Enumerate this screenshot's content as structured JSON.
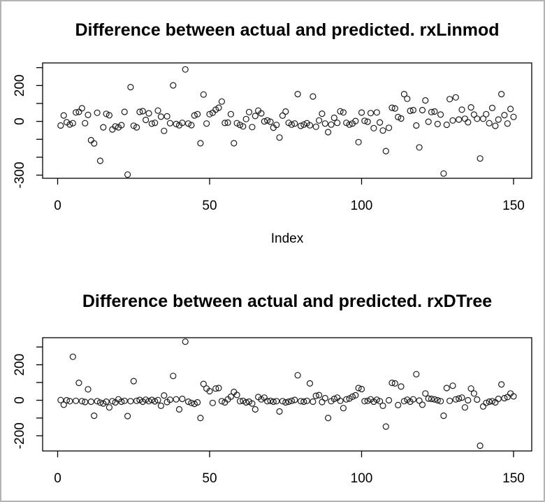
{
  "window": {
    "background": "#ffffff",
    "border_color": "#b3b3b3",
    "frame_color": "#000000",
    "marker": {
      "shape": "open-circle",
      "color": "#1d1d1d"
    }
  },
  "chart_data": [
    {
      "type": "scatter",
      "title": "Difference between actual and predicted. rxLinmod",
      "xlabel": "Index",
      "ylabel": "",
      "xlim": [
        0,
        155
      ],
      "ylim": [
        -320,
        325
      ],
      "grid": "off",
      "x_ticks": [
        0,
        50,
        100,
        150
      ],
      "y_ticks": [
        300,
        200,
        100,
        0,
        -100,
        -200,
        -300
      ],
      "y_tick_labels": [
        200,
        0,
        -300
      ],
      "x_rule": "x = point index 1..150",
      "values": [
        -23,
        33,
        -5,
        -17,
        -10,
        50,
        53,
        73,
        -10,
        36,
        -105,
        -123,
        48,
        -220,
        -33,
        42,
        34,
        -45,
        -28,
        -33,
        -21,
        53,
        -297,
        191,
        -24,
        -33,
        53,
        57,
        8,
        45,
        -13,
        -8,
        60,
        26,
        -53,
        28,
        -10,
        201,
        -15,
        -22,
        -8,
        290,
        -12,
        -21,
        33,
        40,
        -122,
        150,
        -12,
        40,
        48,
        65,
        76,
        111,
        -9,
        -7,
        40,
        -122,
        -10,
        -20,
        -28,
        13,
        52,
        -32,
        30,
        60,
        45,
        0,
        5,
        -2,
        -35,
        -20,
        -90,
        32,
        55,
        -8,
        -18,
        -12,
        152,
        -25,
        -18,
        -10,
        -22,
        139,
        -30,
        5,
        43,
        -12,
        -60,
        -18,
        20,
        -8,
        56,
        50,
        -8,
        -18,
        -12,
        2,
        -116,
        49,
        3,
        -2,
        46,
        -38,
        50,
        -6,
        -51,
        -166,
        -36,
        76,
        72,
        24,
        16,
        152,
        126,
        59,
        63,
        -23,
        -145,
        63,
        117,
        -2,
        52,
        55,
        -15,
        38,
        -291,
        -19,
        124,
        5,
        134,
        10,
        65,
        15,
        -5,
        78,
        38,
        15,
        -207,
        15,
        40,
        -10,
        75,
        -25,
        10,
        152,
        35,
        -12,
        69,
        25
      ]
    },
    {
      "type": "scatter",
      "title": "Difference between actual and predicted. rxDTree",
      "xlabel": "",
      "ylabel": "",
      "xlim": [
        0,
        155
      ],
      "ylim": [
        -275,
        350
      ],
      "grid": "off",
      "x_ticks": [
        0,
        50,
        100,
        150
      ],
      "y_ticks": [
        300,
        200,
        100,
        0,
        -100,
        -200
      ],
      "y_tick_labels": [
        200,
        0,
        -200
      ],
      "x_rule": "x = point index 1..150",
      "values": [
        1,
        -25,
        0,
        -5,
        245,
        -3,
        98,
        -5,
        -10,
        62,
        -8,
        -87,
        -5,
        -13,
        -18,
        -8,
        -40,
        -5,
        -12,
        5,
        -8,
        -3,
        -89,
        -5,
        108,
        -3,
        2,
        -8,
        3,
        -5,
        2,
        -6,
        1,
        -31,
        27,
        -10,
        3,
        137,
        5,
        -51,
        8,
        330,
        -8,
        -15,
        -20,
        -12,
        -100,
        92,
        66,
        51,
        -15,
        66,
        69,
        -5,
        -12,
        5,
        20,
        47,
        30,
        -5,
        -3,
        -12,
        -8,
        -18,
        -51,
        18,
        5,
        15,
        -5,
        -3,
        -8,
        -5,
        -63,
        -5,
        -12,
        -8,
        -3,
        2,
        141,
        -5,
        -8,
        -3,
        95,
        -8,
        25,
        29,
        -10,
        12,
        -100,
        -5,
        8,
        15,
        -3,
        -44,
        5,
        10,
        20,
        28,
        69,
        63,
        -5,
        -3,
        5,
        -8,
        3,
        -5,
        -31,
        -148,
        0,
        98,
        95,
        -27,
        77,
        -5,
        3,
        -8,
        5,
        147,
        -2,
        -25,
        38,
        10,
        8,
        5,
        0,
        -5,
        -87,
        69,
        -3,
        82,
        5,
        10,
        15,
        -40,
        0,
        66,
        38,
        4,
        -256,
        -35,
        -15,
        -8,
        -5,
        -12,
        8,
        89,
        12,
        18,
        38,
        22
      ]
    }
  ]
}
